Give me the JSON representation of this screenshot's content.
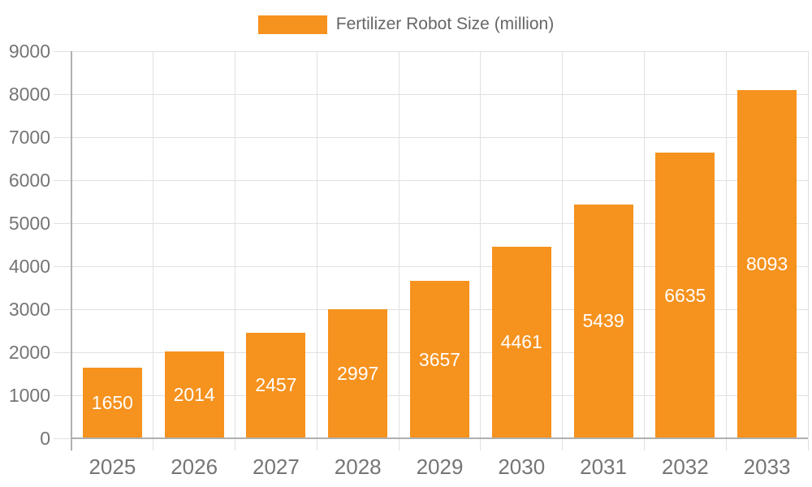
{
  "legend": {
    "label": "Fertilizer Robot Size (million)"
  },
  "chart_data": {
    "type": "bar",
    "title": "",
    "xlabel": "",
    "ylabel": "",
    "categories": [
      "2025",
      "2026",
      "2027",
      "2028",
      "2029",
      "2030",
      "2031",
      "2032",
      "2033"
    ],
    "series": [
      {
        "name": "Fertilizer Robot Size (million)",
        "values": [
          1650,
          2014,
          2457,
          2997,
          3657,
          4461,
          5439,
          6635,
          8093
        ]
      }
    ],
    "ylim": [
      0,
      9000
    ],
    "ytick_step": 1000,
    "ytick_labels": [
      "0",
      "1000",
      "2000",
      "3000",
      "4000",
      "5000",
      "6000",
      "7000",
      "8000",
      "9000"
    ],
    "grid": true,
    "legend_position": "top",
    "value_labels": "inside-center",
    "colors": {
      "bar": "#F6921E",
      "value_label": "#ffffff",
      "axis_line": "#b0b0b0",
      "gridline": "#e0e0e0",
      "axis_text": "#757575",
      "legend_text": "#666666",
      "background": "#ffffff"
    }
  }
}
